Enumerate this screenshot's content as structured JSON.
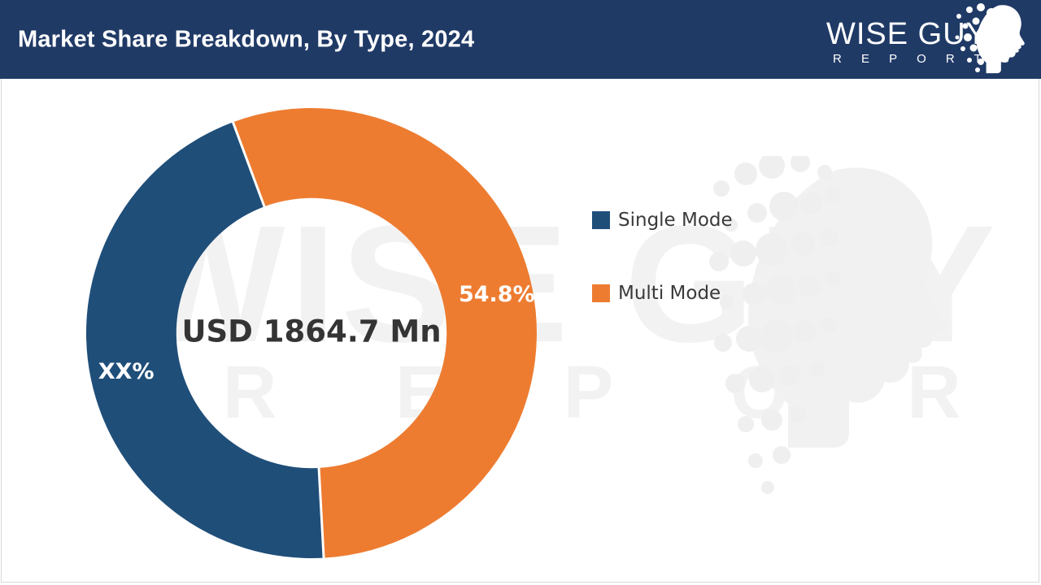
{
  "header": {
    "title": "Market Share Breakdown, By Type, 2024",
    "bg_color": "#203A66"
  },
  "logo": {
    "title": "WISE GUY",
    "subtitle": "R E P O R T S"
  },
  "watermark": {
    "line1": "WISE GUY",
    "line2": "R E P O R T S"
  },
  "chart_data": {
    "type": "pie",
    "subtype": "donut",
    "title": "Market Share Breakdown, By Type, 2024",
    "center_label": "USD 1864.7 Mn",
    "slices": [
      {
        "label": "Single Mode",
        "value_pct": 45.2,
        "display": "XX%",
        "color": "#1F4E79"
      },
      {
        "label": "Multi Mode",
        "value_pct": 54.8,
        "display": "54.8%",
        "color": "#ED7C31"
      }
    ],
    "draw_order": [
      1,
      0
    ],
    "start_angle_from_top_deg": -20.4,
    "direction": "clockwise",
    "inner_radius_ratio": 0.6,
    "legend_position": "right",
    "accent_colors": {
      "blue": "#1F4E79",
      "orange": "#ED7C31",
      "navy": "#203A66"
    }
  }
}
